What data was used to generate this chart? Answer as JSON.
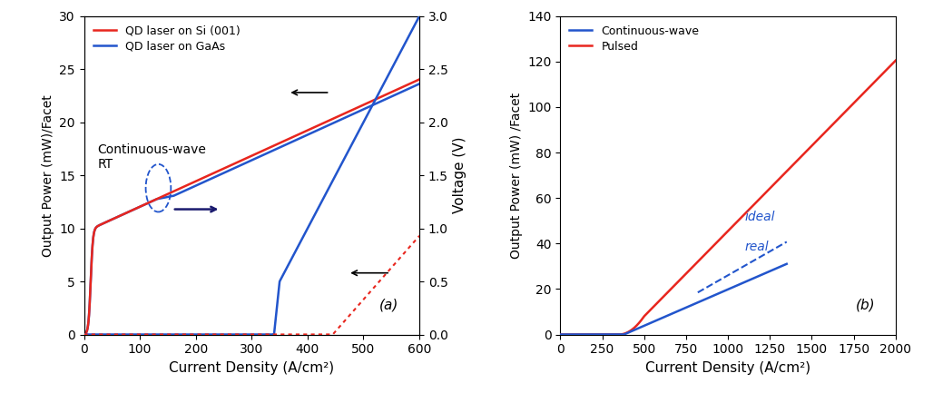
{
  "panel_a": {
    "xlabel": "Current Density (A/cm²)",
    "ylabel_left": "Output Power (mW)/Facet",
    "ylabel_right": "Voltage (V)",
    "xlim": [
      0,
      600
    ],
    "ylim_left": [
      0,
      30
    ],
    "ylim_right": [
      0,
      3
    ],
    "legend": [
      "QD laser on Si (001)",
      "QD laser on GaAs"
    ],
    "legend_colors": [
      "#e8261e",
      "#2255cc"
    ],
    "annot_text": "Continuous-wave\nRT",
    "label": "(a)"
  },
  "panel_b": {
    "xlabel": "Current Density (A/cm²)",
    "ylabel_left": "Output Power (mW) /Facet",
    "xlim": [
      0,
      2000
    ],
    "ylim_left": [
      0,
      140
    ],
    "legend": [
      "Continuous-wave",
      "Pulsed"
    ],
    "legend_colors": [
      "#2255cc",
      "#e8261e"
    ],
    "label": "(b)"
  }
}
